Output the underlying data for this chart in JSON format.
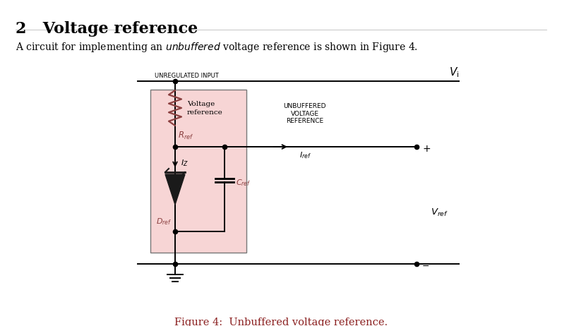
{
  "title": "2   Voltage reference",
  "subtitle_plain": "A circuit for implementing an ",
  "subtitle_italic": "unbuffered",
  "subtitle_rest": " voltage reference is shown in Figure 4.",
  "figure_caption": "Figure 4:  Unbuffered voltage reference.",
  "background_color": "#ffffff",
  "box_fill": "#f7d5d5",
  "box_edge": "#777777",
  "lc": "#000000",
  "cc": "#8B4040",
  "text_color": "#000000",
  "label_color": "#8B4040",
  "fig_caption_color": "#8B2020"
}
